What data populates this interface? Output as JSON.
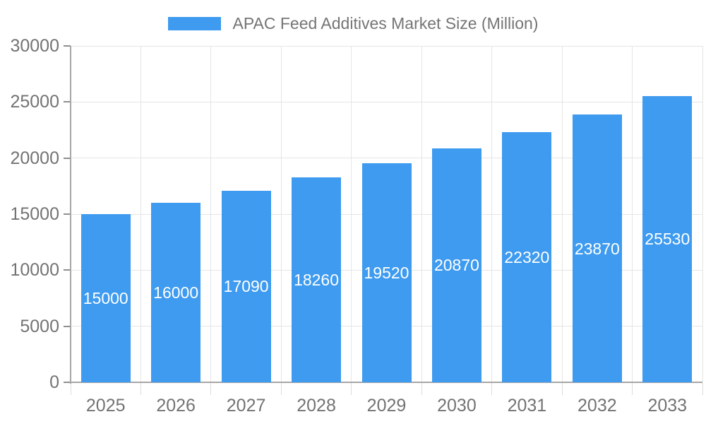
{
  "legend": {
    "label": "APAC Feed Additives Market Size (Million)"
  },
  "chart_data": {
    "type": "bar",
    "title": "APAC Feed Additives Market Size (Million)",
    "series_name": "APAC Feed Additives Market Size (Million)",
    "categories": [
      "2025",
      "2026",
      "2027",
      "2028",
      "2029",
      "2030",
      "2031",
      "2032",
      "2033"
    ],
    "values": [
      15000,
      16000,
      17090,
      18260,
      19520,
      20870,
      22320,
      23870,
      25530
    ],
    "value_labels": [
      "15000",
      "16000",
      "17090",
      "18260",
      "19520",
      "20870",
      "22320",
      "23870",
      "25530"
    ],
    "xlabel": "",
    "ylabel": "",
    "ylim": [
      0,
      30000
    ],
    "yticks": [
      0,
      5000,
      10000,
      15000,
      20000,
      25000,
      30000
    ],
    "grid": true,
    "legend_position": "top-center",
    "value_label_position": "inside-center",
    "colors": {
      "bar": "#3E9BEF",
      "value_label": "#FFFFFF",
      "axis_text": "#737373",
      "legend_text": "#757575",
      "gridline": "#E5E5E5",
      "tick": "#DCDCDC",
      "y_tick": "#8F8F8F",
      "axis_line": "#A6A6A6"
    }
  }
}
